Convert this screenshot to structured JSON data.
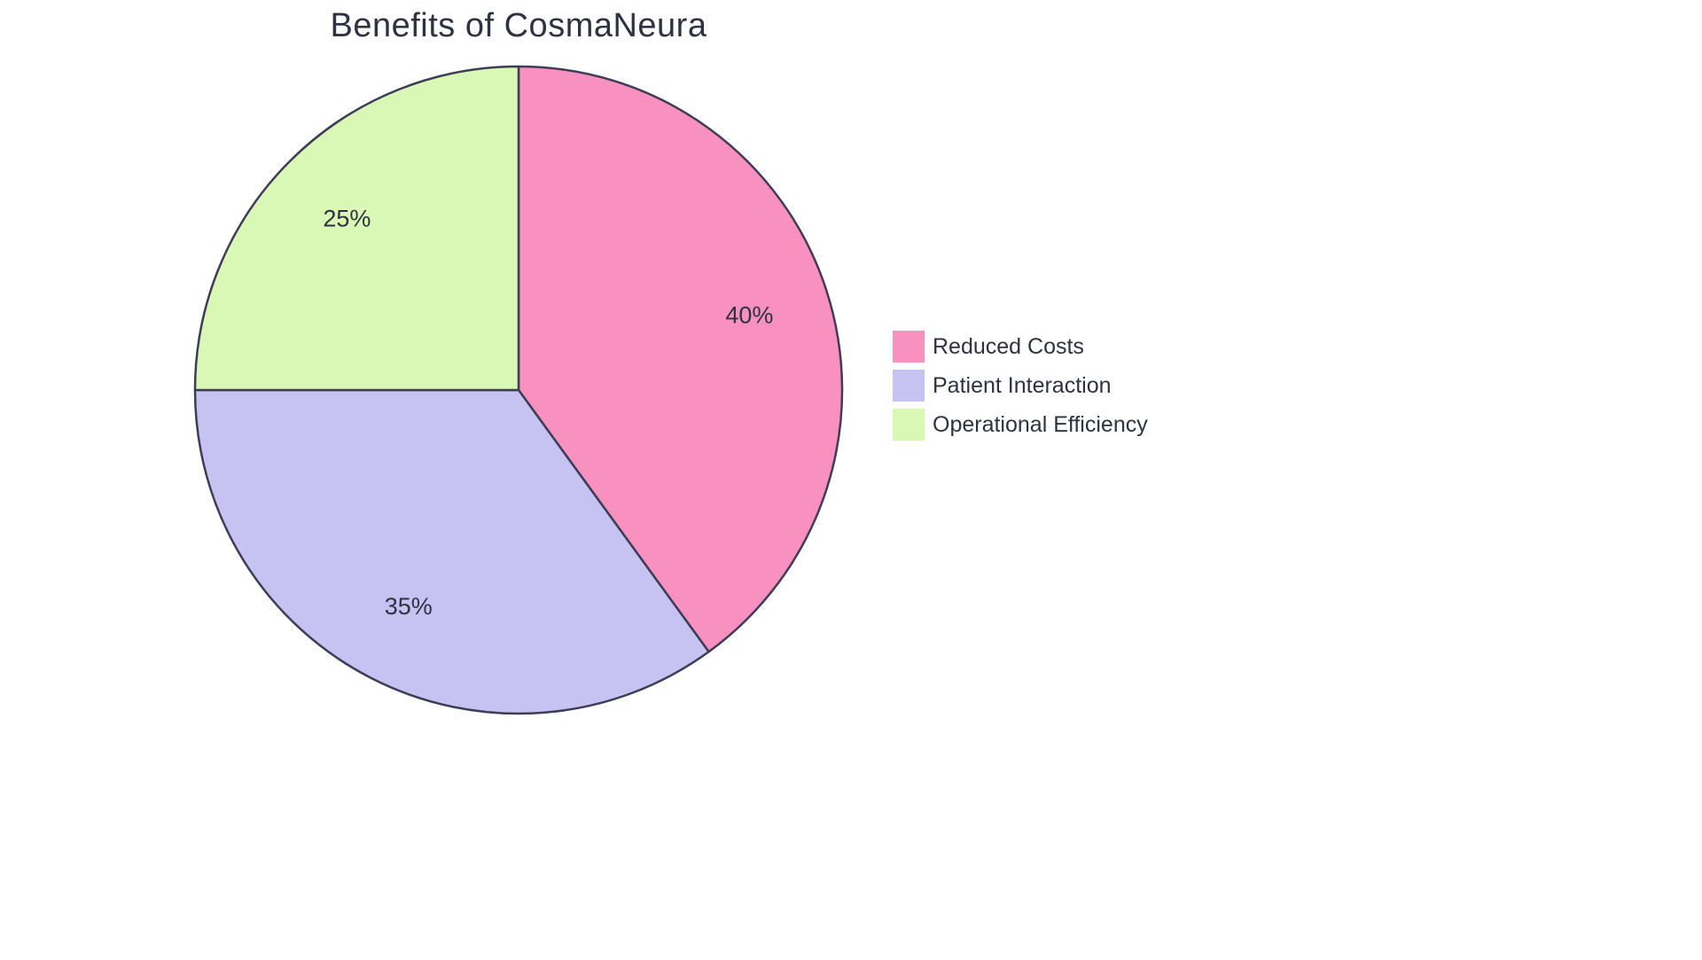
{
  "chart_data": {
    "type": "pie",
    "title": "Benefits of CosmaNeura",
    "segments": [
      {
        "label": "Reduced Costs",
        "value": 40,
        "pct_label": "40%",
        "color": "#F890C0"
      },
      {
        "label": "Patient Interaction",
        "value": 35,
        "pct_label": "35%",
        "color": "#C6C2F2"
      },
      {
        "label": "Operational Efficiency",
        "value": 25,
        "pct_label": "25%",
        "color": "#D9F7B5"
      }
    ],
    "start_angle": "top",
    "direction": "clockwise",
    "outline_color": "#3F3D56",
    "text_color": "#2F3242",
    "legend_position": "right",
    "background": "#FFFFFF"
  }
}
